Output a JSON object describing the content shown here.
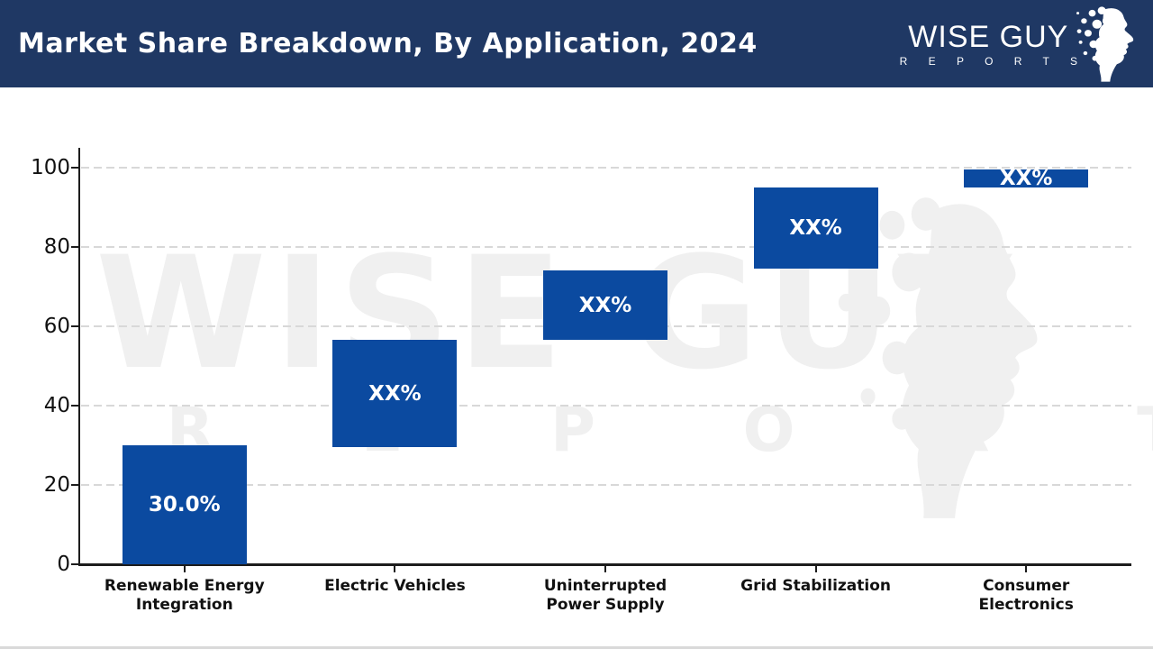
{
  "header": {
    "title": "Market Share Breakdown, By Application, 2024",
    "logo": {
      "name": "WISE GUY",
      "sub": "R E P O R T S"
    }
  },
  "watermark": {
    "name": "WISE GUY",
    "sub": "R E P O R T S"
  },
  "colors": {
    "header_bg": "#1f3864",
    "bar": "#0b4aa0",
    "bar_label": "#ffffff",
    "grid": "#d8d8d8",
    "axis": "#1c1c1c",
    "text": "#111111",
    "watermark": "#f0f0f0"
  },
  "chart_data": {
    "type": "bar",
    "subtype": "waterfall",
    "title": "Market Share Breakdown, By Application, 2024",
    "categories": [
      [
        "Renewable Energy",
        "Integration"
      ],
      [
        "Electric Vehicles"
      ],
      [
        "Uninterrupted",
        "Power Supply"
      ],
      [
        "Grid Stabilization"
      ],
      [
        "Consumer",
        "Electronics"
      ]
    ],
    "segments": [
      {
        "category": "Renewable Energy Integration",
        "label": "30.0%",
        "start": 0,
        "end": 30
      },
      {
        "category": "Electric Vehicles",
        "label": "XX%",
        "start": 29.5,
        "end": 56.5
      },
      {
        "category": "Uninterrupted Power Supply",
        "label": "XX%",
        "start": 56.5,
        "end": 74
      },
      {
        "category": "Grid Stabilization",
        "label": "XX%",
        "start": 74.5,
        "end": 95
      },
      {
        "category": "Consumer Electronics",
        "label": "XX%",
        "start": 95,
        "end": 99.6
      }
    ],
    "yticks": [
      0,
      20,
      40,
      60,
      80,
      100
    ],
    "ylim": [
      0,
      105
    ],
    "grid": "dashed-horizontal",
    "legend": "none",
    "xlabel": "",
    "ylabel": ""
  }
}
